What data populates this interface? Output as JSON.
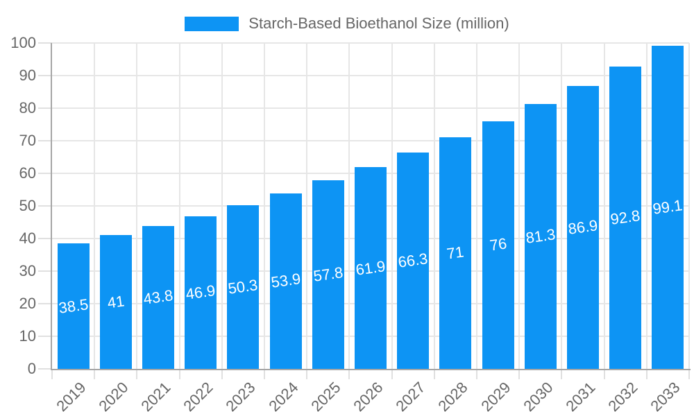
{
  "chart_data": {
    "type": "bar",
    "title": "Starch-Based Bioethanol Size (million)",
    "legend": {
      "label": "Starch-Based Bioethanol Size (million)",
      "position": "top"
    },
    "categories": [
      "2019",
      "2020",
      "2021",
      "2022",
      "2023",
      "2024",
      "2025",
      "2026",
      "2027",
      "2028",
      "2029",
      "2030",
      "2031",
      "2032",
      "2033"
    ],
    "values": [
      38.5,
      41,
      43.8,
      46.9,
      50.3,
      53.9,
      57.8,
      61.9,
      66.3,
      71,
      76,
      81.3,
      86.9,
      92.8,
      99.1
    ],
    "xlabel": "",
    "ylabel": "",
    "ylim": [
      0,
      100
    ],
    "ytick_step": 10,
    "ytick_labels": [
      "0",
      "10",
      "20",
      "30",
      "40",
      "50",
      "60",
      "70",
      "80",
      "90",
      "100"
    ],
    "grid": true,
    "bar_value_labels_shown": true,
    "colors": {
      "bar": "#0d94f4",
      "bar_value_text": "#ffffff",
      "axis_text": "#666666",
      "axis_line": "#a6a6a6",
      "grid_line": "#e6e6e6",
      "tick_mark": "#e0e0e0",
      "background": "#ffffff"
    }
  }
}
